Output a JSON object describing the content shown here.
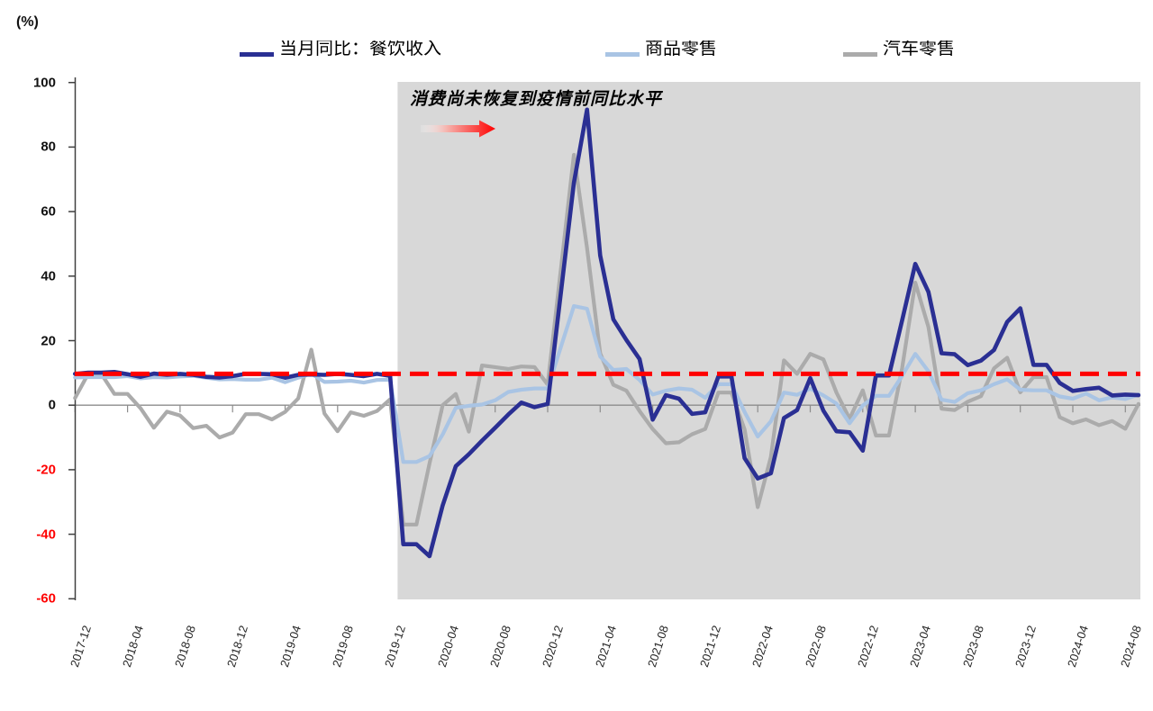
{
  "y_axis": {
    "unit": "(%)",
    "ticks": [
      100,
      80,
      60,
      40,
      20,
      0,
      -20,
      -40,
      -60
    ],
    "min": -60,
    "max": 100,
    "positive_color": "#111111",
    "negative_color": "#ff0000"
  },
  "legend": {
    "items": [
      {
        "label": "当月同比：餐饮收入",
        "color": "#2A2F93"
      },
      {
        "label": "商品零售",
        "color": "#A9C4E4"
      },
      {
        "label": "汽车零售",
        "color": "#ABABAB"
      }
    ]
  },
  "annotation": {
    "text": "消费尚未恢复到疫情前同比水平",
    "arrow": "gradient-right-arrow",
    "arrow_color": "#ff0000"
  },
  "reference_line": {
    "value": 9.7,
    "color": "#ff0000",
    "style": "dashed"
  },
  "shaded_region": {
    "start": "2020-01",
    "end": "2024-09",
    "color": "#D8D8D8"
  },
  "chart_data": {
    "type": "line",
    "title": "",
    "xlabel": "",
    "ylabel": "(%)",
    "ylim": [
      -60,
      100
    ],
    "grid": "zero-line-only",
    "legend_position": "top",
    "x": [
      "2017-12",
      "2018-01",
      "2018-02",
      "2018-03",
      "2018-04",
      "2018-05",
      "2018-06",
      "2018-07",
      "2018-08",
      "2018-09",
      "2018-10",
      "2018-11",
      "2018-12",
      "2019-01",
      "2019-02",
      "2019-03",
      "2019-04",
      "2019-05",
      "2019-06",
      "2019-07",
      "2019-08",
      "2019-09",
      "2019-10",
      "2019-11",
      "2019-12",
      "2020-01",
      "2020-02",
      "2020-03",
      "2020-04",
      "2020-05",
      "2020-06",
      "2020-07",
      "2020-08",
      "2020-09",
      "2020-10",
      "2020-11",
      "2020-12",
      "2021-01",
      "2021-02",
      "2021-03",
      "2021-04",
      "2021-05",
      "2021-06",
      "2021-07",
      "2021-08",
      "2021-09",
      "2021-10",
      "2021-11",
      "2021-12",
      "2022-01",
      "2022-02",
      "2022-03",
      "2022-04",
      "2022-05",
      "2022-06",
      "2022-07",
      "2022-08",
      "2022-09",
      "2022-10",
      "2022-11",
      "2022-12",
      "2023-01",
      "2023-02",
      "2023-03",
      "2023-04",
      "2023-05",
      "2023-06",
      "2023-07",
      "2023-08",
      "2023-09",
      "2023-10",
      "2023-11",
      "2023-12",
      "2024-01",
      "2024-02",
      "2024-03",
      "2024-04",
      "2024-05",
      "2024-06",
      "2024-07",
      "2024-08",
      "2024-09"
    ],
    "x_tick_labels": [
      "2017-12",
      "2018-04",
      "2018-08",
      "2018-12",
      "2019-04",
      "2019-08",
      "2019-12",
      "2020-04",
      "2020-08",
      "2020-12",
      "2021-04",
      "2021-08",
      "2021-12",
      "2022-04",
      "2022-08",
      "2022-12",
      "2023-04",
      "2023-08",
      "2023-12",
      "2024-04",
      "2024-08"
    ],
    "x_tick_every_n_months": 4,
    "series": [
      {
        "name": "当月同比：餐饮收入",
        "color": "#2A2F93",
        "values": [
          9.7,
          10.1,
          10.1,
          10.3,
          9.6,
          8.8,
          9.8,
          9.4,
          9.7,
          9.4,
          8.8,
          8.6,
          9.0,
          9.7,
          9.7,
          9.6,
          8.5,
          9.4,
          9.5,
          9.4,
          9.7,
          9.4,
          9.0,
          9.7,
          9.1,
          -43.1,
          -43.1,
          -46.8,
          -31.1,
          -18.9,
          -15.2,
          -11.0,
          -7.0,
          -2.9,
          0.8,
          -0.6,
          0.4,
          34.7,
          68.9,
          91.6,
          46.4,
          26.6,
          20.2,
          14.3,
          -4.5,
          3.1,
          2.0,
          -2.7,
          -2.2,
          8.9,
          8.9,
          -16.4,
          -22.7,
          -21.1,
          -4.0,
          -1.5,
          8.4,
          -1.7,
          -8.1,
          -8.4,
          -14.1,
          9.2,
          9.2,
          26.3,
          43.8,
          35.1,
          16.1,
          15.8,
          12.4,
          13.8,
          17.1,
          25.8,
          30.0,
          12.5,
          12.5,
          6.9,
          4.4,
          5.0,
          5.4,
          3.0,
          3.3,
          3.1
        ]
      },
      {
        "name": "商品零售",
        "color": "#A9C4E4",
        "values": [
          8.6,
          8.7,
          8.7,
          8.7,
          9.0,
          8.3,
          8.7,
          8.6,
          8.9,
          9.1,
          8.5,
          8.0,
          8.1,
          7.9,
          7.9,
          8.5,
          7.1,
          8.5,
          9.8,
          7.2,
          7.3,
          7.6,
          7.0,
          7.8,
          7.9,
          -17.6,
          -17.6,
          -15.8,
          -9.1,
          -0.8,
          -0.2,
          0.2,
          1.5,
          4.1,
          4.8,
          5.2,
          5.2,
          18.0,
          30.7,
          29.9,
          15.1,
          10.9,
          11.2,
          7.8,
          3.3,
          4.5,
          5.2,
          4.8,
          2.3,
          6.5,
          6.5,
          -2.1,
          -9.7,
          -5.0,
          3.9,
          3.2,
          5.1,
          3.0,
          0.5,
          -5.6,
          -0.1,
          2.9,
          2.9,
          9.1,
          15.9,
          10.5,
          1.7,
          1.0,
          3.7,
          4.6,
          6.5,
          8.0,
          4.8,
          4.6,
          4.6,
          2.7,
          2.0,
          3.6,
          1.5,
          2.4,
          1.9,
          3.3
        ]
      },
      {
        "name": "汽车零售",
        "color": "#ABABAB",
        "values": [
          2.2,
          9.7,
          9.7,
          3.5,
          3.5,
          -1.0,
          -7.0,
          -2.0,
          -3.2,
          -7.1,
          -6.4,
          -10.0,
          -8.5,
          -2.8,
          -2.8,
          -4.4,
          -2.1,
          2.1,
          17.2,
          -2.6,
          -8.1,
          -2.2,
          -3.3,
          -1.8,
          1.8,
          -37.0,
          -37.0,
          -18.1,
          0.0,
          3.5,
          -8.2,
          12.3,
          11.8,
          11.2,
          12.0,
          11.8,
          6.4,
          42.0,
          77.6,
          48.7,
          16.1,
          6.3,
          4.5,
          -1.8,
          -7.4,
          -11.8,
          -11.5,
          -9.0,
          -7.4,
          3.9,
          3.9,
          -7.5,
          -31.6,
          -16.0,
          13.9,
          9.7,
          15.9,
          14.2,
          3.9,
          -4.2,
          4.6,
          -9.4,
          -9.4,
          11.5,
          38.0,
          24.2,
          -1.1,
          -1.5,
          1.1,
          2.8,
          11.4,
          14.7,
          4.0,
          8.7,
          8.7,
          -3.7,
          -5.6,
          -4.4,
          -6.2,
          -4.9,
          -7.3,
          0.4
        ]
      }
    ]
  }
}
